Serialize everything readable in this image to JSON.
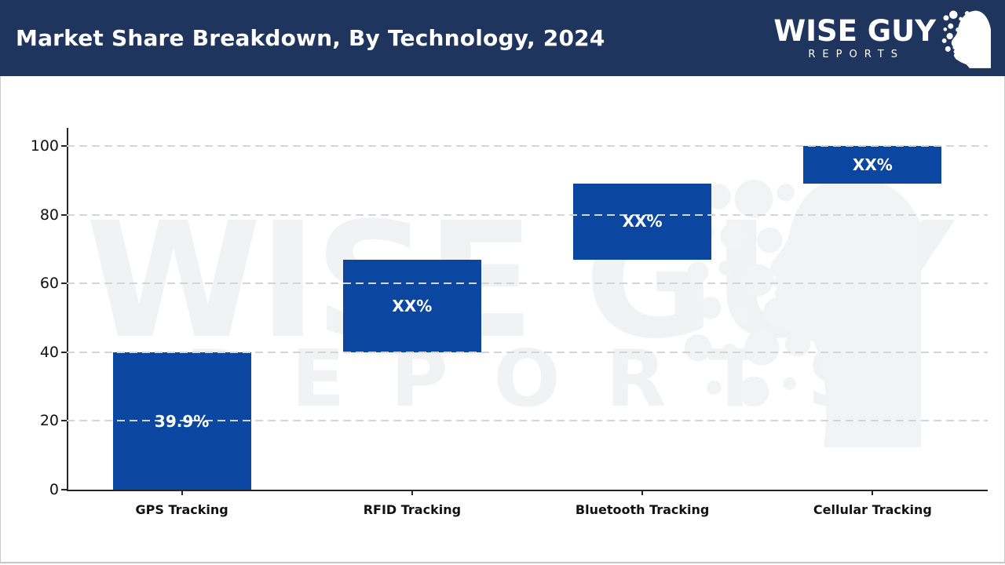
{
  "header": {
    "title": "Market Share Breakdown, By Technology, 2024",
    "background_color": "#1f355e",
    "logo": {
      "line1": "WISE GUY",
      "line2": "REPORTS"
    }
  },
  "watermark": {
    "line1": "WISE GUY",
    "line2": "REPORTS"
  },
  "chart_data": {
    "type": "bar",
    "subtype": "waterfall",
    "title": "Market Share Breakdown, By Technology, 2024",
    "categories": [
      "GPS Tracking",
      "RFID Tracking",
      "Bluetooth Tracking",
      "Cellular Tracking"
    ],
    "segments": [
      {
        "category": "GPS Tracking",
        "start": 0,
        "end": 39.9,
        "label": "39.9%"
      },
      {
        "category": "RFID Tracking",
        "start": 39.9,
        "end": 66.9,
        "label": "XX%"
      },
      {
        "category": "Bluetooth Tracking",
        "start": 66.9,
        "end": 89.1,
        "label": "XX%"
      },
      {
        "category": "Cellular Tracking",
        "start": 89.1,
        "end": 100,
        "label": "XX%"
      }
    ],
    "ylabel": "",
    "xlabel": "",
    "ylim": [
      0,
      100
    ],
    "yticks": [
      0,
      20,
      40,
      60,
      80,
      100
    ],
    "grid": "horizontal-dashed, drawn above bars",
    "legend": "none",
    "bar_color": "#0b46a0",
    "bar_label_color": "#ffffff",
    "axis_color": "#262626",
    "grid_color": "#d5d5d5"
  }
}
